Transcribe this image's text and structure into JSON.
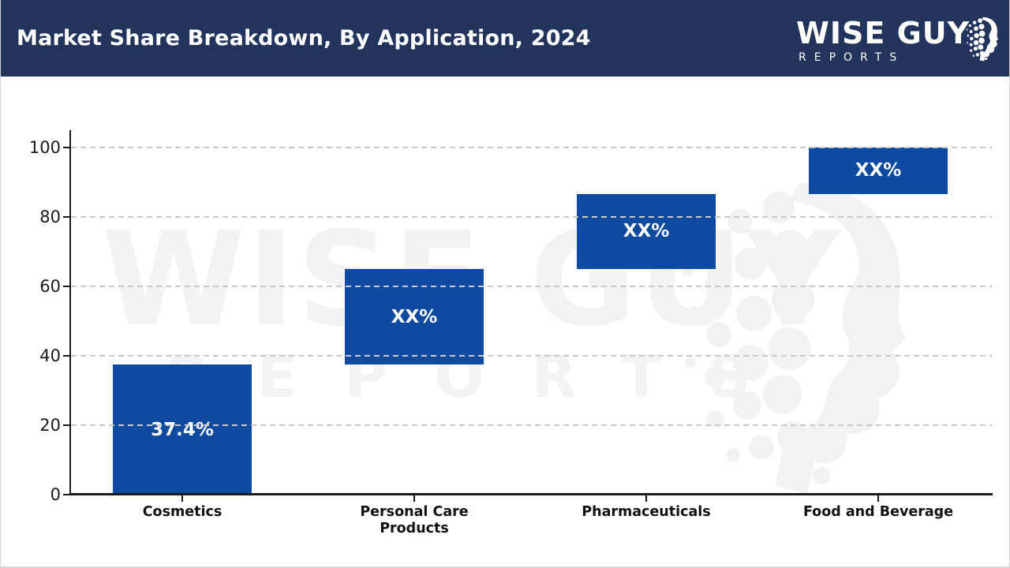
{
  "header": {
    "title": "Market Share Breakdown, By Application, 2024",
    "logo": {
      "line1": "WISE GUY",
      "line2": "REPORTS"
    }
  },
  "watermark": {
    "line1": "WISE GUY",
    "line2": "REPORTS"
  },
  "chart_data": {
    "type": "bar",
    "subtype": "waterfall-floating-bars",
    "title": "Market Share Breakdown, By Application, 2024",
    "categories": [
      "Cosmetics",
      "Personal Care\nProducts",
      "Pharmaceuticals",
      "Food and Beverage"
    ],
    "segments": [
      {
        "category": "Cosmetics",
        "start": 0,
        "end": 37.4,
        "label": "37.4%"
      },
      {
        "category": "Personal Care Products",
        "start": 37.4,
        "end": 65.0,
        "label": "XX%"
      },
      {
        "category": "Pharmaceuticals",
        "start": 65.0,
        "end": 86.6,
        "label": "XX%"
      },
      {
        "category": "Food and Beverage",
        "start": 86.6,
        "end": 100.0,
        "label": "XX%"
      }
    ],
    "xlabel": "",
    "ylabel": "",
    "ylim": [
      0,
      100
    ],
    "yticks": [
      0,
      20,
      40,
      60,
      80,
      100
    ],
    "grid": "horizontal dashed, drawn above bars",
    "legend": "none",
    "bar_color": "#0d4aa0",
    "bar_label_color": "#ffffff"
  },
  "colors": {
    "header_bg": "#22335c",
    "bar": "#0d4aa0",
    "grid": "#c9c9c9",
    "axis": "#1a1a1a",
    "watermark": "#f3f3f3"
  }
}
